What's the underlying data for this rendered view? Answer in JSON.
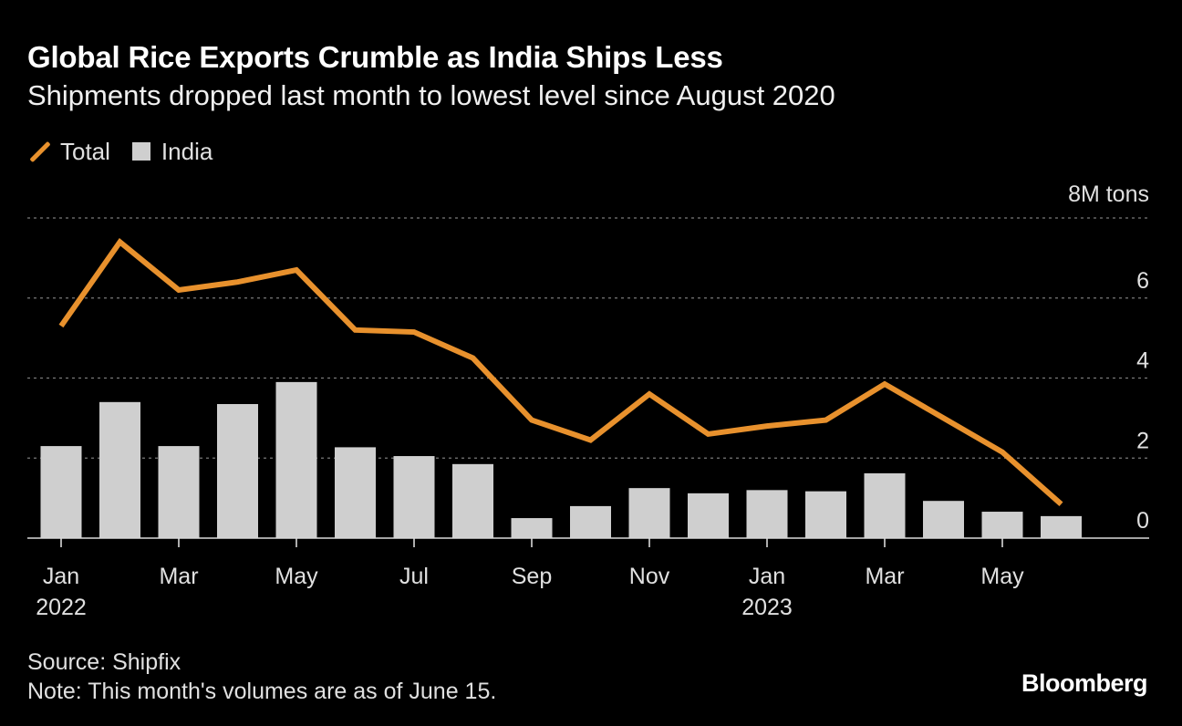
{
  "title": "Global Rice Exports Crumble as India Ships Less",
  "subtitle": "Shipments dropped last month to lowest level since August 2020",
  "legend": {
    "total_label": "Total",
    "india_label": "India"
  },
  "footer": {
    "source": "Source: Shipfix",
    "note": "Note: This month's volumes are as of June 15."
  },
  "brand": "Bloomberg",
  "colors": {
    "total_line": "#e8912d",
    "india_bar": "#cfcfcf",
    "background": "#000000"
  },
  "chart_data": {
    "type": "bar",
    "title": "Global Rice Exports Crumble as India Ships Less",
    "subtitle": "Shipments dropped last month to lowest level since August 2020",
    "ylabel": "8M tons",
    "ylim": [
      0,
      8
    ],
    "yticks": [
      {
        "value": 0,
        "label": "0"
      },
      {
        "value": 2,
        "label": "2"
      },
      {
        "value": 4,
        "label": "4"
      },
      {
        "value": 6,
        "label": "6"
      },
      {
        "value": 8,
        "label": "8M tons"
      }
    ],
    "categories": [
      "Jan 2022",
      "Feb 2022",
      "Mar 2022",
      "Apr 2022",
      "May 2022",
      "Jun 2022",
      "Jul 2022",
      "Aug 2022",
      "Sep 2022",
      "Oct 2022",
      "Nov 2022",
      "Dec 2022",
      "Jan 2023",
      "Feb 2023",
      "Mar 2023",
      "Apr 2023",
      "May 2023",
      "Jun 2023"
    ],
    "xtick_labels": [
      {
        "index": 0,
        "line1": "Jan",
        "line2": "2022"
      },
      {
        "index": 2,
        "line1": "Mar",
        "line2": ""
      },
      {
        "index": 4,
        "line1": "May",
        "line2": ""
      },
      {
        "index": 6,
        "line1": "Jul",
        "line2": ""
      },
      {
        "index": 8,
        "line1": "Sep",
        "line2": ""
      },
      {
        "index": 10,
        "line1": "Nov",
        "line2": ""
      },
      {
        "index": 12,
        "line1": "Jan",
        "line2": "2023"
      },
      {
        "index": 14,
        "line1": "Mar",
        "line2": ""
      },
      {
        "index": 16,
        "line1": "May",
        "line2": ""
      }
    ],
    "series": [
      {
        "name": "India",
        "type": "bar",
        "values": [
          2.3,
          3.4,
          2.3,
          3.35,
          3.9,
          2.27,
          2.05,
          1.85,
          0.5,
          0.8,
          1.25,
          1.12,
          1.2,
          1.17,
          1.62,
          0.93,
          0.66,
          0.55
        ]
      },
      {
        "name": "Total",
        "type": "line",
        "values": [
          5.3,
          7.4,
          6.2,
          6.4,
          6.7,
          5.2,
          5.15,
          4.5,
          2.95,
          2.45,
          3.6,
          2.6,
          2.8,
          2.95,
          3.85,
          3.0,
          2.15,
          0.85
        ]
      }
    ]
  }
}
